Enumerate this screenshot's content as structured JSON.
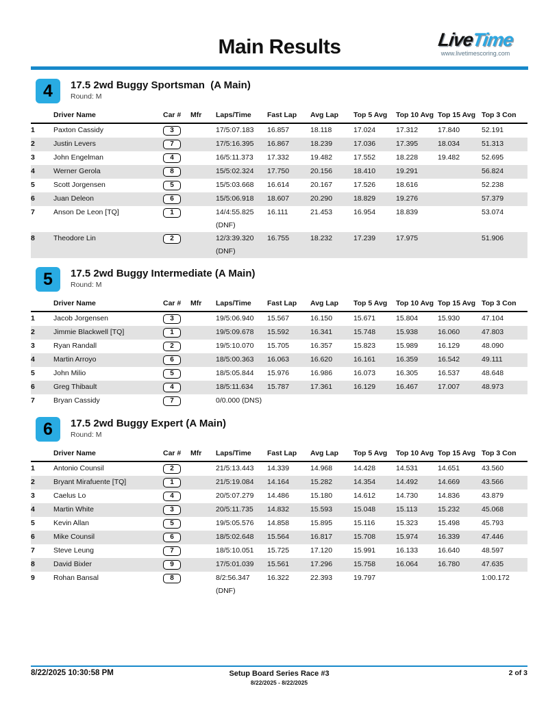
{
  "page": {
    "title": "Main Results",
    "logo": {
      "live": "Live",
      "time": "Time",
      "url": "www.livetimescoring.com"
    },
    "footer": {
      "timestamp": "8/22/2025 10:30:58 PM",
      "event": "Setup Board Series Race #3",
      "dates": "8/22/2025 - 8/22/2025",
      "page_number": "2 of 3"
    }
  },
  "colors": {
    "accent_blue": "#1789ca",
    "badge_cyan": "#29abe2",
    "row_stripe": "#e2e2e2"
  },
  "columns": [
    "",
    "Driver Name",
    "Car #",
    "Mfr",
    "Laps/Time",
    "Fast Lap",
    "Avg Lap",
    "Top 5 Avg",
    "Top 10 Avg",
    "Top 15 Avg",
    "Top 3 Con"
  ],
  "sections": [
    {
      "number": "4",
      "title": "17.5 2wd Buggy Sportsman  (A Main)",
      "round": "Round: M",
      "rows": [
        {
          "pos": "1",
          "driver": "Paxton Cassidy",
          "car": "3",
          "mfr": "",
          "laps": "17/5:07.183",
          "note": "",
          "fast": "16.857",
          "avg": "18.118",
          "top5": "17.024",
          "top10": "17.312",
          "top15": "17.840",
          "top3": "52.191"
        },
        {
          "pos": "2",
          "driver": "Justin Levers",
          "car": "7",
          "mfr": "",
          "laps": "17/5:16.395",
          "note": "",
          "fast": "16.867",
          "avg": "18.239",
          "top5": "17.036",
          "top10": "17.395",
          "top15": "18.034",
          "top3": "51.313"
        },
        {
          "pos": "3",
          "driver": "John Engelman",
          "car": "4",
          "mfr": "",
          "laps": "16/5:11.373",
          "note": "",
          "fast": "17.332",
          "avg": "19.482",
          "top5": "17.552",
          "top10": "18.228",
          "top15": "19.482",
          "top3": "52.695"
        },
        {
          "pos": "4",
          "driver": "Werner Gerola",
          "car": "8",
          "mfr": "",
          "laps": "15/5:02.324",
          "note": "",
          "fast": "17.750",
          "avg": "20.156",
          "top5": "18.410",
          "top10": "19.291",
          "top15": "",
          "top3": "56.824"
        },
        {
          "pos": "5",
          "driver": "Scott Jorgensen",
          "car": "5",
          "mfr": "",
          "laps": "15/5:03.668",
          "note": "",
          "fast": "16.614",
          "avg": "20.167",
          "top5": "17.526",
          "top10": "18.616",
          "top15": "",
          "top3": "52.238"
        },
        {
          "pos": "6",
          "driver": "Juan Deleon",
          "car": "6",
          "mfr": "",
          "laps": "15/5:06.918",
          "note": "",
          "fast": "18.607",
          "avg": "20.290",
          "top5": "18.829",
          "top10": "19.276",
          "top15": "",
          "top3": "57.379"
        },
        {
          "pos": "7",
          "driver": "Anson De Leon [TQ]",
          "car": "1",
          "mfr": "",
          "laps": "14/4:55.825",
          "note": "(DNF)",
          "fast": "16.111",
          "avg": "21.453",
          "top5": "16.954",
          "top10": "18.839",
          "top15": "",
          "top3": "53.074"
        },
        {
          "pos": "8",
          "driver": "Theodore Lin",
          "car": "2",
          "mfr": "",
          "laps": "12/3:39.320",
          "note": "(DNF)",
          "fast": "16.755",
          "avg": "18.232",
          "top5": "17.239",
          "top10": "17.975",
          "top15": "",
          "top3": "51.906"
        }
      ]
    },
    {
      "number": "5",
      "title": "17.5 2wd Buggy Intermediate (A Main)",
      "round": "Round: M",
      "rows": [
        {
          "pos": "1",
          "driver": "Jacob Jorgensen",
          "car": "3",
          "mfr": "",
          "laps": "19/5:06.940",
          "note": "",
          "fast": "15.567",
          "avg": "16.150",
          "top5": "15.671",
          "top10": "15.804",
          "top15": "15.930",
          "top3": "47.104"
        },
        {
          "pos": "2",
          "driver": "Jimmie Blackwell [TQ]",
          "car": "1",
          "mfr": "",
          "laps": "19/5:09.678",
          "note": "",
          "fast": "15.592",
          "avg": "16.341",
          "top5": "15.748",
          "top10": "15.938",
          "top15": "16.060",
          "top3": "47.803"
        },
        {
          "pos": "3",
          "driver": "Ryan Randall",
          "car": "2",
          "mfr": "",
          "laps": "19/5:10.070",
          "note": "",
          "fast": "15.705",
          "avg": "16.357",
          "top5": "15.823",
          "top10": "15.989",
          "top15": "16.129",
          "top3": "48.090"
        },
        {
          "pos": "4",
          "driver": "Martin Arroyo",
          "car": "6",
          "mfr": "",
          "laps": "18/5:00.363",
          "note": "",
          "fast": "16.063",
          "avg": "16.620",
          "top5": "16.161",
          "top10": "16.359",
          "top15": "16.542",
          "top3": "49.111"
        },
        {
          "pos": "5",
          "driver": "John Milio",
          "car": "5",
          "mfr": "",
          "laps": "18/5:05.844",
          "note": "",
          "fast": "15.976",
          "avg": "16.986",
          "top5": "16.073",
          "top10": "16.305",
          "top15": "16.537",
          "top3": "48.648"
        },
        {
          "pos": "6",
          "driver": "Greg Thibault",
          "car": "4",
          "mfr": "",
          "laps": "18/5:11.634",
          "note": "",
          "fast": "15.787",
          "avg": "17.361",
          "top5": "16.129",
          "top10": "16.467",
          "top15": "17.007",
          "top3": "48.973"
        },
        {
          "pos": "7",
          "driver": "Bryan Cassidy",
          "car": "7",
          "mfr": "",
          "laps": "0/0.000 (DNS)",
          "note": "",
          "fast": "",
          "avg": "",
          "top5": "",
          "top10": "",
          "top15": "",
          "top3": ""
        }
      ]
    },
    {
      "number": "6",
      "title": "17.5 2wd Buggy Expert (A Main)",
      "round": "Round: M",
      "rows": [
        {
          "pos": "1",
          "driver": "Antonio Counsil",
          "car": "2",
          "mfr": "",
          "laps": "21/5:13.443",
          "note": "",
          "fast": "14.339",
          "avg": "14.968",
          "top5": "14.428",
          "top10": "14.531",
          "top15": "14.651",
          "top3": "43.560"
        },
        {
          "pos": "2",
          "driver": "Bryant Mirafuente [TQ]",
          "car": "1",
          "mfr": "",
          "laps": "21/5:19.084",
          "note": "",
          "fast": "14.164",
          "avg": "15.282",
          "top5": "14.354",
          "top10": "14.492",
          "top15": "14.669",
          "top3": "43.566"
        },
        {
          "pos": "3",
          "driver": "Caelus Lo",
          "car": "4",
          "mfr": "",
          "laps": "20/5:07.279",
          "note": "",
          "fast": "14.486",
          "avg": "15.180",
          "top5": "14.612",
          "top10": "14.730",
          "top15": "14.836",
          "top3": "43.879"
        },
        {
          "pos": "4",
          "driver": "Martin White",
          "car": "3",
          "mfr": "",
          "laps": "20/5:11.735",
          "note": "",
          "fast": "14.832",
          "avg": "15.593",
          "top5": "15.048",
          "top10": "15.113",
          "top15": "15.232",
          "top3": "45.068"
        },
        {
          "pos": "5",
          "driver": "Kevin Allan",
          "car": "5",
          "mfr": "",
          "laps": "19/5:05.576",
          "note": "",
          "fast": "14.858",
          "avg": "15.895",
          "top5": "15.116",
          "top10": "15.323",
          "top15": "15.498",
          "top3": "45.793"
        },
        {
          "pos": "6",
          "driver": "Mike Counsil",
          "car": "6",
          "mfr": "",
          "laps": "18/5:02.648",
          "note": "",
          "fast": "15.564",
          "avg": "16.817",
          "top5": "15.708",
          "top10": "15.974",
          "top15": "16.339",
          "top3": "47.446"
        },
        {
          "pos": "7",
          "driver": "Steve Leung",
          "car": "7",
          "mfr": "",
          "laps": "18/5:10.051",
          "note": "",
          "fast": "15.725",
          "avg": "17.120",
          "top5": "15.991",
          "top10": "16.133",
          "top15": "16.640",
          "top3": "48.597"
        },
        {
          "pos": "8",
          "driver": "David Bixler",
          "car": "9",
          "mfr": "",
          "laps": "17/5:01.039",
          "note": "",
          "fast": "15.561",
          "avg": "17.296",
          "top5": "15.758",
          "top10": "16.064",
          "top15": "16.780",
          "top3": "47.635"
        },
        {
          "pos": "9",
          "driver": "Rohan Bansal",
          "car": "8",
          "mfr": "",
          "laps": "8/2:56.347",
          "note": "(DNF)",
          "fast": "16.322",
          "avg": "22.393",
          "top5": "19.797",
          "top10": "",
          "top15": "",
          "top3": "1:00.172"
        }
      ]
    }
  ]
}
